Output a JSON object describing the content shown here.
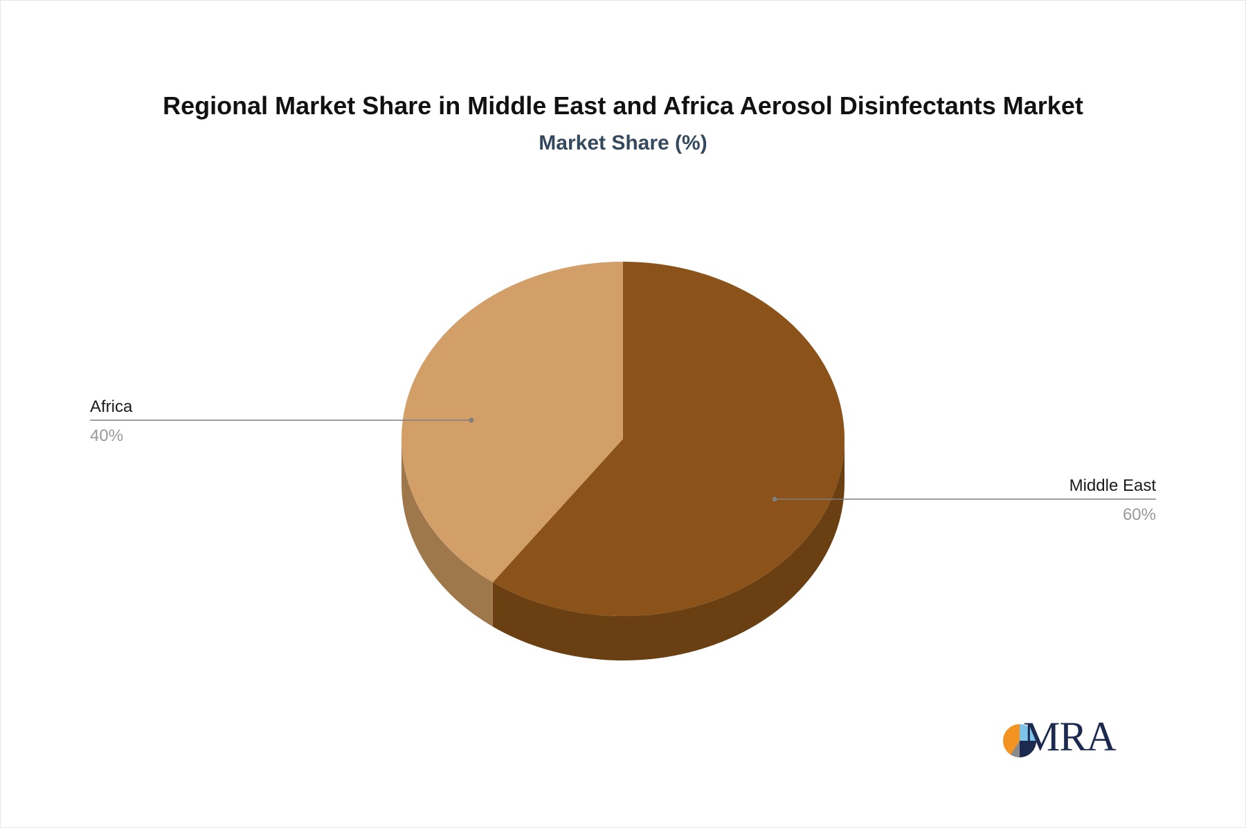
{
  "chart_data": {
    "type": "pie",
    "title": "Regional Market Share in Middle East and Africa Aerosol Disinfectants Market",
    "subtitle": "Market Share (%)",
    "slices": [
      {
        "name": "Middle East",
        "value": 60,
        "value_label": "60%",
        "color": "#8B5319",
        "side_color": "#6A4013"
      },
      {
        "name": "Africa",
        "value": 40,
        "value_label": "40%",
        "color": "#D19F67",
        "side_color": "#9E784B"
      }
    ],
    "style": "3d"
  },
  "logo": {
    "text": "MRA",
    "colors": {
      "orange": "#F39322",
      "light_blue": "#7EC3E8",
      "navy": "#1B2A4E",
      "gray": "#8A8A8A"
    }
  }
}
